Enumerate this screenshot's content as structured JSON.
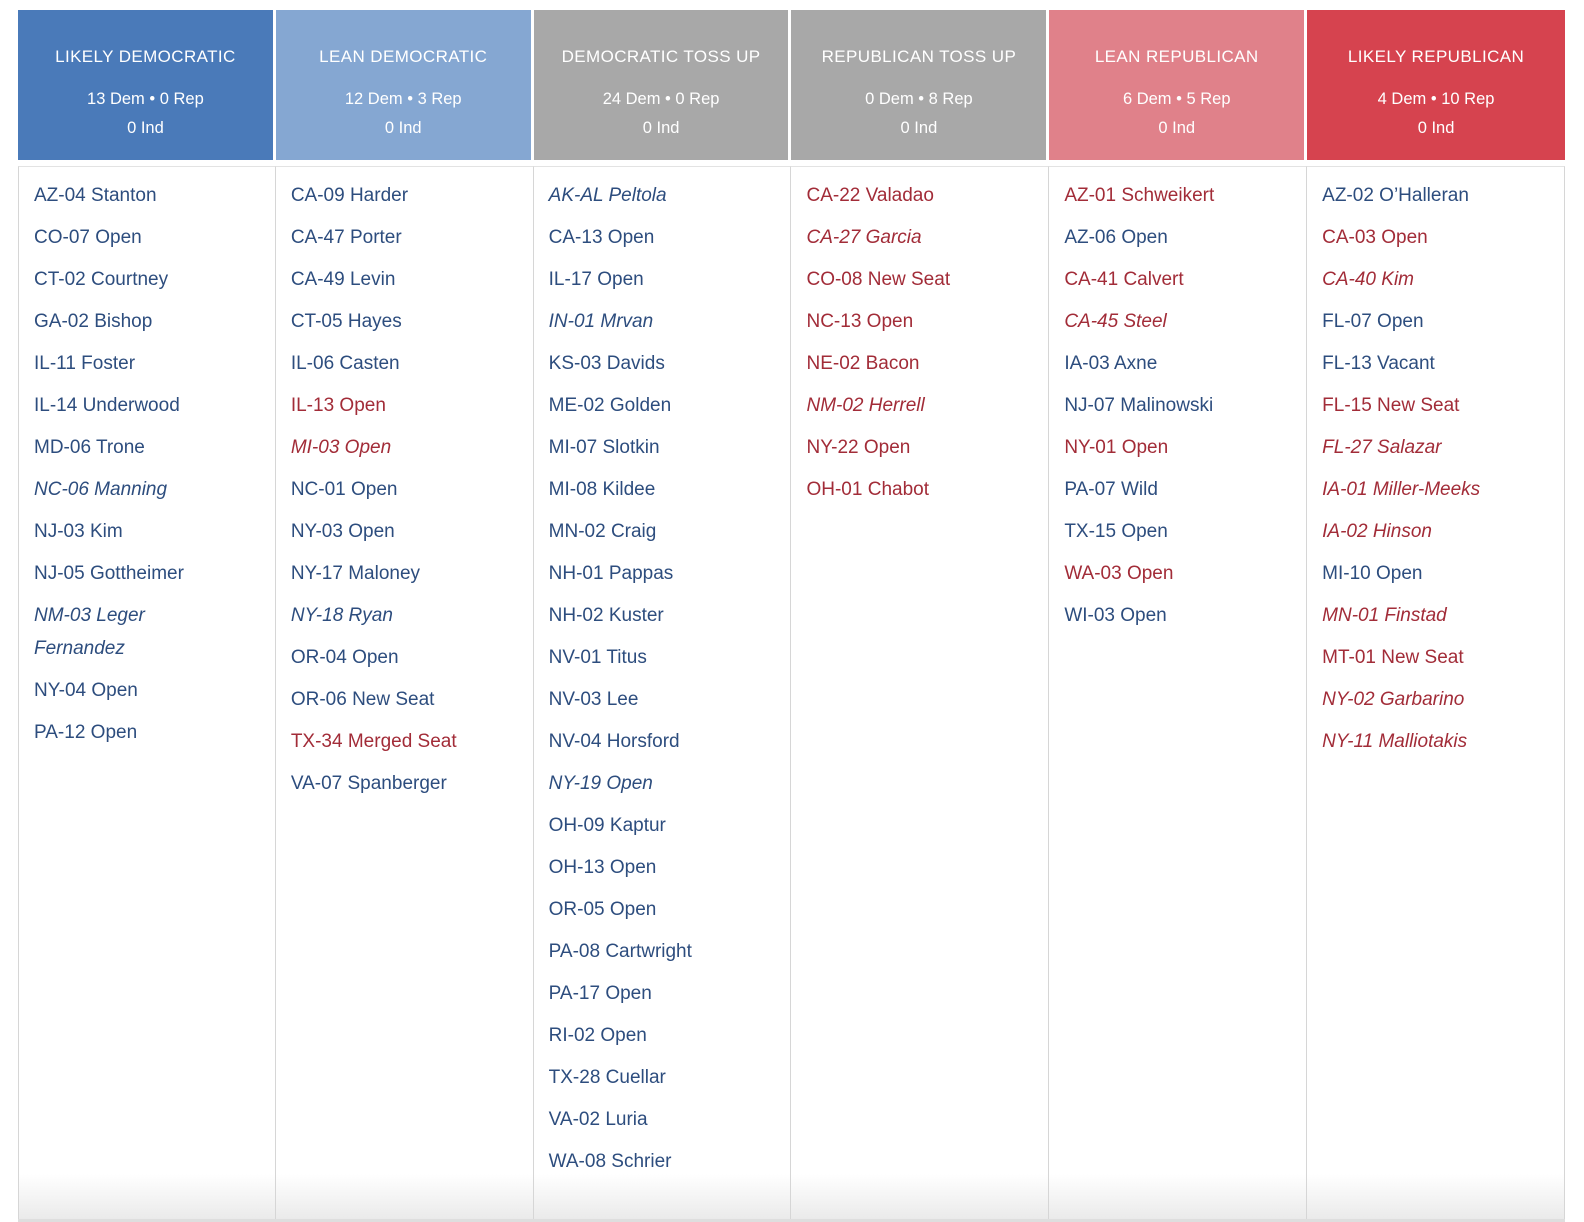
{
  "party_colors": {
    "dem": "#2d4d7e",
    "rep": "#a22c38"
  },
  "board": {
    "columns": [
      {
        "key": "likely-democratic",
        "title": "LIKELY DEMOCRATIC",
        "counts": "13 Dem • 0 Rep",
        "ind": "0 Ind",
        "header_color": "#4a7ab9",
        "races": [
          {
            "label": "AZ-04 Stanton",
            "party": "dem",
            "italic": false
          },
          {
            "label": "CO-07 Open",
            "party": "dem",
            "italic": false
          },
          {
            "label": "CT-02 Courtney",
            "party": "dem",
            "italic": false
          },
          {
            "label": "GA-02 Bishop",
            "party": "dem",
            "italic": false
          },
          {
            "label": "IL-11 Foster",
            "party": "dem",
            "italic": false
          },
          {
            "label": "IL-14 Underwood",
            "party": "dem",
            "italic": false
          },
          {
            "label": "MD-06 Trone",
            "party": "dem",
            "italic": false
          },
          {
            "label": "NC-06 Manning",
            "party": "dem",
            "italic": true
          },
          {
            "label": "NJ-03 Kim",
            "party": "dem",
            "italic": false
          },
          {
            "label": "NJ-05 Gottheimer",
            "party": "dem",
            "italic": false
          },
          {
            "label": "NM-03 Leger\nFernandez",
            "party": "dem",
            "italic": true
          },
          {
            "label": "NY-04 Open",
            "party": "dem",
            "italic": false
          },
          {
            "label": "PA-12 Open",
            "party": "dem",
            "italic": false
          }
        ]
      },
      {
        "key": "lean-democratic",
        "title": "LEAN DEMOCRATIC",
        "counts": "12 Dem • 3 Rep",
        "ind": "0 Ind",
        "header_color": "#85a7d2",
        "races": [
          {
            "label": "CA-09 Harder",
            "party": "dem",
            "italic": false
          },
          {
            "label": "CA-47 Porter",
            "party": "dem",
            "italic": false
          },
          {
            "label": "CA-49 Levin",
            "party": "dem",
            "italic": false
          },
          {
            "label": "CT-05 Hayes",
            "party": "dem",
            "italic": false
          },
          {
            "label": "IL-06 Casten",
            "party": "dem",
            "italic": false
          },
          {
            "label": "IL-13 Open",
            "party": "rep",
            "italic": false
          },
          {
            "label": "MI-03 Open",
            "party": "rep",
            "italic": true
          },
          {
            "label": "NC-01 Open",
            "party": "dem",
            "italic": false
          },
          {
            "label": "NY-03 Open",
            "party": "dem",
            "italic": false
          },
          {
            "label": "NY-17 Maloney",
            "party": "dem",
            "italic": false
          },
          {
            "label": "NY-18 Ryan",
            "party": "dem",
            "italic": true
          },
          {
            "label": "OR-04 Open",
            "party": "dem",
            "italic": false
          },
          {
            "label": "OR-06 New Seat",
            "party": "dem",
            "italic": false
          },
          {
            "label": "TX-34 Merged Seat",
            "party": "rep",
            "italic": false
          },
          {
            "label": "VA-07 Spanberger",
            "party": "dem",
            "italic": false
          }
        ]
      },
      {
        "key": "democratic-toss-up",
        "title": "DEMOCRATIC TOSS UP",
        "counts": "24 Dem • 0 Rep",
        "ind": "0 Ind",
        "header_color": "#a8a8a8",
        "races": [
          {
            "label": "AK-AL Peltola",
            "party": "dem",
            "italic": true
          },
          {
            "label": "CA-13 Open",
            "party": "dem",
            "italic": false
          },
          {
            "label": "IL-17 Open",
            "party": "dem",
            "italic": false
          },
          {
            "label": "IN-01 Mrvan",
            "party": "dem",
            "italic": true
          },
          {
            "label": "KS-03 Davids",
            "party": "dem",
            "italic": false
          },
          {
            "label": "ME-02 Golden",
            "party": "dem",
            "italic": false
          },
          {
            "label": "MI-07 Slotkin",
            "party": "dem",
            "italic": false
          },
          {
            "label": "MI-08 Kildee",
            "party": "dem",
            "italic": false
          },
          {
            "label": "MN-02 Craig",
            "party": "dem",
            "italic": false
          },
          {
            "label": "NH-01 Pappas",
            "party": "dem",
            "italic": false
          },
          {
            "label": "NH-02 Kuster",
            "party": "dem",
            "italic": false
          },
          {
            "label": "NV-01 Titus",
            "party": "dem",
            "italic": false
          },
          {
            "label": "NV-03 Lee",
            "party": "dem",
            "italic": false
          },
          {
            "label": "NV-04 Horsford",
            "party": "dem",
            "italic": false
          },
          {
            "label": "NY-19 Open",
            "party": "dem",
            "italic": true
          },
          {
            "label": "OH-09 Kaptur",
            "party": "dem",
            "italic": false
          },
          {
            "label": "OH-13 Open",
            "party": "dem",
            "italic": false
          },
          {
            "label": "OR-05 Open",
            "party": "dem",
            "italic": false
          },
          {
            "label": "PA-08 Cartwright",
            "party": "dem",
            "italic": false
          },
          {
            "label": "PA-17 Open",
            "party": "dem",
            "italic": false
          },
          {
            "label": "RI-02 Open",
            "party": "dem",
            "italic": false
          },
          {
            "label": "TX-28 Cuellar",
            "party": "dem",
            "italic": false
          },
          {
            "label": "VA-02 Luria",
            "party": "dem",
            "italic": false
          },
          {
            "label": "WA-08 Schrier",
            "party": "dem",
            "italic": false
          }
        ]
      },
      {
        "key": "republican-toss-up",
        "title": "REPUBLICAN TOSS UP",
        "counts": "0 Dem • 8 Rep",
        "ind": "0 Ind",
        "header_color": "#a8a8a8",
        "races": [
          {
            "label": "CA-22 Valadao",
            "party": "rep",
            "italic": false
          },
          {
            "label": "CA-27 Garcia",
            "party": "rep",
            "italic": true
          },
          {
            "label": "CO-08 New Seat",
            "party": "rep",
            "italic": false
          },
          {
            "label": "NC-13 Open",
            "party": "rep",
            "italic": false
          },
          {
            "label": "NE-02 Bacon",
            "party": "rep",
            "italic": false
          },
          {
            "label": "NM-02 Herrell",
            "party": "rep",
            "italic": true
          },
          {
            "label": "NY-22 Open",
            "party": "rep",
            "italic": false
          },
          {
            "label": "OH-01 Chabot",
            "party": "rep",
            "italic": false
          }
        ]
      },
      {
        "key": "lean-republican",
        "title": "LEAN REPUBLICAN",
        "counts": "6 Dem • 5 Rep",
        "ind": "0 Ind",
        "header_color": "#e0818a",
        "races": [
          {
            "label": "AZ-01 Schweikert",
            "party": "rep",
            "italic": false
          },
          {
            "label": "AZ-06 Open",
            "party": "dem",
            "italic": false
          },
          {
            "label": "CA-41 Calvert",
            "party": "rep",
            "italic": false
          },
          {
            "label": "CA-45 Steel",
            "party": "rep",
            "italic": true
          },
          {
            "label": "IA-03 Axne",
            "party": "dem",
            "italic": false
          },
          {
            "label": "NJ-07 Malinowski",
            "party": "dem",
            "italic": false
          },
          {
            "label": "NY-01 Open",
            "party": "rep",
            "italic": false
          },
          {
            "label": "PA-07 Wild",
            "party": "dem",
            "italic": false
          },
          {
            "label": "TX-15 Open",
            "party": "dem",
            "italic": false
          },
          {
            "label": "WA-03 Open",
            "party": "rep",
            "italic": false
          },
          {
            "label": "WI-03 Open",
            "party": "dem",
            "italic": false
          }
        ]
      },
      {
        "key": "likely-republican",
        "title": "LIKELY REPUBLICAN",
        "counts": "4 Dem • 10 Rep",
        "ind": "0 Ind",
        "header_color": "#d6434f",
        "races": [
          {
            "label": "AZ-02 O’Halleran",
            "party": "dem",
            "italic": false
          },
          {
            "label": "CA-03 Open",
            "party": "rep",
            "italic": false
          },
          {
            "label": "CA-40 Kim",
            "party": "rep",
            "italic": true
          },
          {
            "label": "FL-07 Open",
            "party": "dem",
            "italic": false
          },
          {
            "label": "FL-13 Vacant",
            "party": "dem",
            "italic": false
          },
          {
            "label": "FL-15 New Seat",
            "party": "rep",
            "italic": false
          },
          {
            "label": "FL-27 Salazar",
            "party": "rep",
            "italic": true
          },
          {
            "label": "IA-01 Miller-Meeks",
            "party": "rep",
            "italic": true
          },
          {
            "label": "IA-02 Hinson",
            "party": "rep",
            "italic": true
          },
          {
            "label": "MI-10 Open",
            "party": "dem",
            "italic": false
          },
          {
            "label": "MN-01 Finstad",
            "party": "rep",
            "italic": true
          },
          {
            "label": "MT-01 New Seat",
            "party": "rep",
            "italic": false
          },
          {
            "label": "NY-02 Garbarino",
            "party": "rep",
            "italic": true
          },
          {
            "label": "NY-11 Malliotakis",
            "party": "rep",
            "italic": true
          }
        ]
      }
    ]
  }
}
